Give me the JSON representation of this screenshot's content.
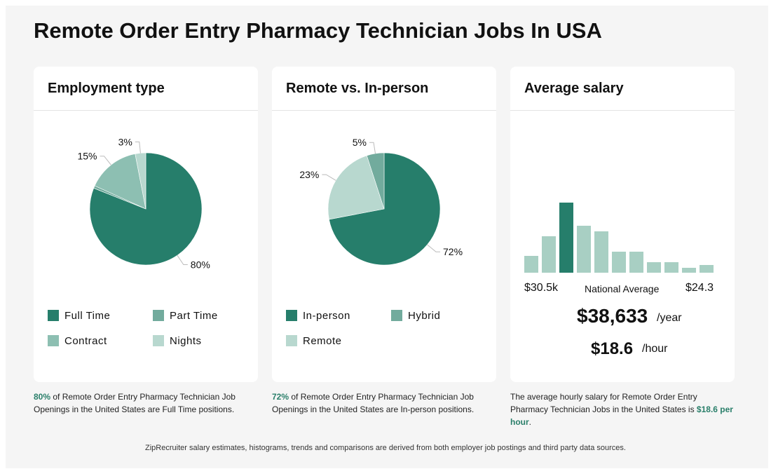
{
  "title": "Remote Order Entry Pharmacy Technician Jobs In USA",
  "colors": {
    "accent": "#2a7f6a",
    "palette": [
      "#267e6b",
      "#72ab9d",
      "#8dbfb2",
      "#b8d8cf"
    ],
    "hist_bar": "#a8cfc3",
    "hist_highlight": "#267e6b"
  },
  "chart_data": [
    {
      "type": "pie",
      "title": "Employment type",
      "slices": [
        {
          "name": "Full Time",
          "value": 80,
          "label": "80%",
          "color": "#267e6b"
        },
        {
          "name": "Part Time",
          "value": 0.7,
          "label": "",
          "color": "#72ab9d"
        },
        {
          "name": "Contract",
          "value": 15,
          "label": "15%",
          "color": "#8dbfb2"
        },
        {
          "name": "Nights",
          "value": 3,
          "label": "3%",
          "color": "#b8d8cf"
        }
      ],
      "legend": [
        "Full Time",
        "Part Time",
        "Contract",
        "Nights"
      ],
      "caption": {
        "highlight": "80%",
        "text": " of Remote Order Entry Pharmacy Technician Job Openings in the United States are Full Time positions."
      }
    },
    {
      "type": "pie",
      "title": "Remote vs. In-person",
      "slices": [
        {
          "name": "In-person",
          "value": 72,
          "label": "72%",
          "color": "#267e6b"
        },
        {
          "name": "Remote",
          "value": 23,
          "label": "23%",
          "color": "#b8d8cf"
        },
        {
          "name": "Hybrid",
          "value": 5,
          "label": "5%",
          "color": "#72ab9d"
        }
      ],
      "legend": [
        "In-person",
        "Hybrid",
        "Remote"
      ],
      "caption": {
        "highlight": "72%",
        "text": " of Remote Order Entry Pharmacy Technician Job Openings in the United States are In-person positions."
      }
    },
    {
      "type": "bar",
      "title": "Average salary",
      "values": [
        24,
        52,
        100,
        67,
        59,
        30,
        30,
        15,
        15,
        7,
        11
      ],
      "highlight_index": 2,
      "x_min_label": "$30.5k",
      "x_mid_label": "National Average",
      "x_max_label": "$24.3",
      "yearly": "$38,633",
      "yearly_unit": "/year",
      "hourly": "$18.6",
      "hourly_unit": "/hour",
      "caption": {
        "text": "The average hourly salary for Remote Order Entry Pharmacy Technician Jobs in the United States is ",
        "highlight": "$18.6 per hour",
        "tail": "."
      }
    }
  ],
  "footer": "ZipRecruiter salary estimates, histograms, trends and comparisons are derived from both employer job postings and third party data sources."
}
